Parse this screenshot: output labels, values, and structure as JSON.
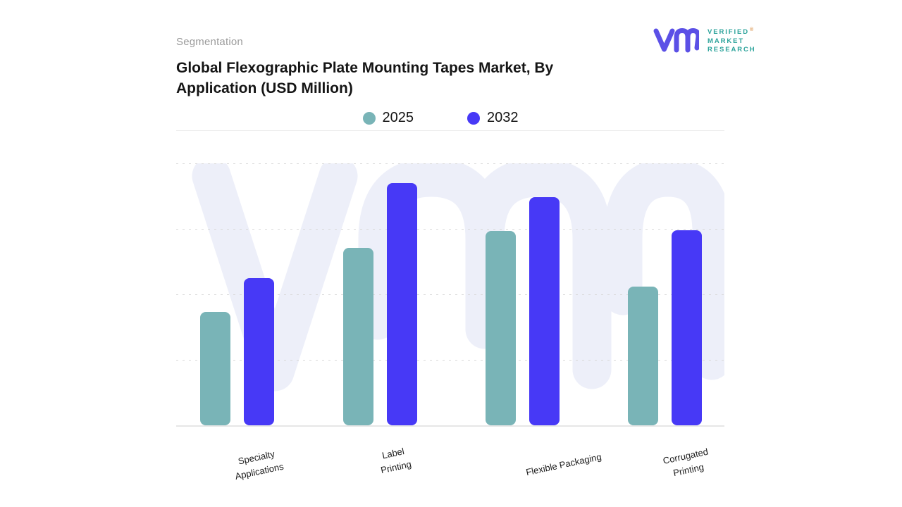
{
  "header": {
    "eyebrow": "Segmentation",
    "title_line1": "Global Flexographic Plate Mounting Tapes Market, By",
    "title_line2": "Application (USD Million)"
  },
  "brand": {
    "logo_mark": "vmr-monogram",
    "mark_color": "#5b50e6",
    "text_color": "#2ca39b",
    "line1": "VERIFIED",
    "registered_mark": "®",
    "line2": "MARKET",
    "line3": "RESEARCH"
  },
  "legend": {
    "items": [
      {
        "label": "2025",
        "color": "#79b4b7"
      },
      {
        "label": "2032",
        "color": "#4739f6"
      }
    ]
  },
  "chart_data": {
    "type": "bar",
    "title": "Global Flexographic Plate Mounting Tapes Market, By Application (USD Million)",
    "categories": [
      "Specialty Applications",
      "Label Printing",
      "Flexible Packaging",
      "Corrugated Printing"
    ],
    "category_label_lines": [
      [
        "Specialty",
        "Applications"
      ],
      [
        "Label",
        "Printing"
      ],
      [
        "Flexible Packaging"
      ],
      [
        "Corrugated",
        "Printing"
      ]
    ],
    "series": [
      {
        "name": "2025",
        "color": "#79b4b7",
        "values_pct_of_plot_height": [
          43.3,
          67.7,
          74.2,
          53.0
        ]
      },
      {
        "name": "2032",
        "color": "#4739f6",
        "values_pct_of_plot_height": [
          56.2,
          92.5,
          87.1,
          74.5
        ]
      }
    ],
    "value_axis": {
      "labels_visible": false,
      "unit": "USD Million",
      "gridlines": 5,
      "gridline_style": "dashed"
    },
    "legend_position": "top-center",
    "watermark": "vmr-logo",
    "grid": true
  }
}
